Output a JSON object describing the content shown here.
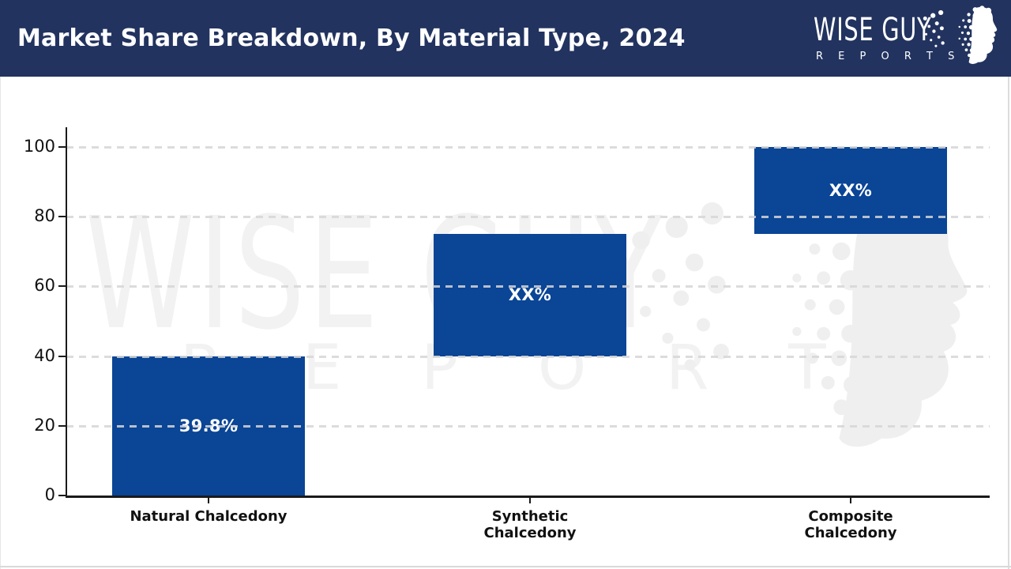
{
  "header": {
    "title": "Market Share Breakdown, By Material Type, 2024",
    "logo": {
      "brand": "WISE GUY",
      "sub": "R E P O R T S"
    }
  },
  "watermark": {
    "brand": "WISE GUY",
    "sub": "R E P O R T S"
  },
  "colors": {
    "header_bg": "#22335f",
    "bar": "#0a4596",
    "title_text": "#ffffff",
    "axis": "#1a1a1a",
    "grid": "#d6d6d6",
    "bar_label_text": "#ffffff",
    "watermark_text": "#f2f2f2",
    "watermark_face": "#efefef"
  },
  "chart_data": {
    "type": "bar",
    "subtype": "floating-segment-waterfall",
    "title": "Market Share Breakdown, By Material Type, 2024",
    "categories": [
      "Natural Chalcedony",
      "Synthetic Chalcedony",
      "Composite Chalcedony"
    ],
    "categories_display": [
      [
        "Natural Chalcedony"
      ],
      [
        "Synthetic",
        "Chalcedony"
      ],
      [
        "Composite",
        "Chalcedony"
      ]
    ],
    "series": [
      {
        "name": "Market share (%)",
        "segments": [
          {
            "category": "Natural Chalcedony",
            "start": 0,
            "end": 40,
            "label": "39.8%"
          },
          {
            "category": "Synthetic Chalcedony",
            "start": 40,
            "end": 75,
            "label": "XX%"
          },
          {
            "category": "Composite Chalcedony",
            "start": 75,
            "end": 100,
            "label": "XX%"
          }
        ]
      }
    ],
    "ylim": [
      0,
      105
    ],
    "yticks": [
      0,
      20,
      40,
      60,
      80,
      100
    ],
    "xlabel": "",
    "ylabel": "",
    "grid": "horizontal-dashed",
    "legend": "none",
    "bar_color": "#0a4596",
    "value_label_color": "#ffffff"
  }
}
